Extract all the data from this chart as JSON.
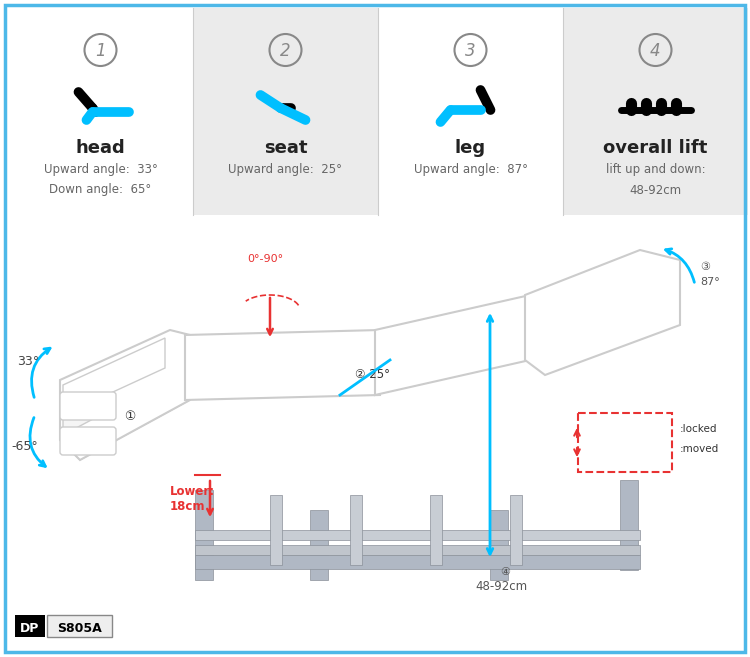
{
  "bg_color": "#ffffff",
  "border_color": "#4db8e8",
  "top_panel_bg": "#f0f0f0",
  "header_bg_white": "#ffffff",
  "header_bg_gray": "#ebebeb",
  "sections": [
    {
      "num": "1",
      "title": "head",
      "line1": "Upward angle:  33°",
      "line2": "Down angle:  65°"
    },
    {
      "num": "2",
      "title": "seat",
      "line1": "Upward angle:  25°",
      "line2": ""
    },
    {
      "num": "3",
      "title": "leg",
      "line1": "Upward angle:  87°",
      "line2": ""
    },
    {
      "num": "4",
      "title": "overall lift",
      "line1": "lift up and down:",
      "line2": "48-92cm"
    }
  ],
  "annotations": {
    "angle_head_up": "33°",
    "angle_head_down": "-65°",
    "angle_head_range": "0°-90°",
    "angle_seat": "② 25°",
    "angle_leg": "87°",
    "lower_text": "Lower:\n18cm",
    "lift_text": "④\n48-92cm",
    "locked_text": "↑ :locked\n↓ :moved",
    "model_dp": "DP",
    "model_num": "S805A"
  },
  "colors": {
    "cyan": "#00bfff",
    "red": "#e83232",
    "black": "#1a1a1a",
    "gray": "#888888",
    "dark_gray": "#555555",
    "light_gray": "#d0d0d0",
    "white": "#ffffff",
    "dashed_red": "#e83232"
  },
  "image_path": null
}
